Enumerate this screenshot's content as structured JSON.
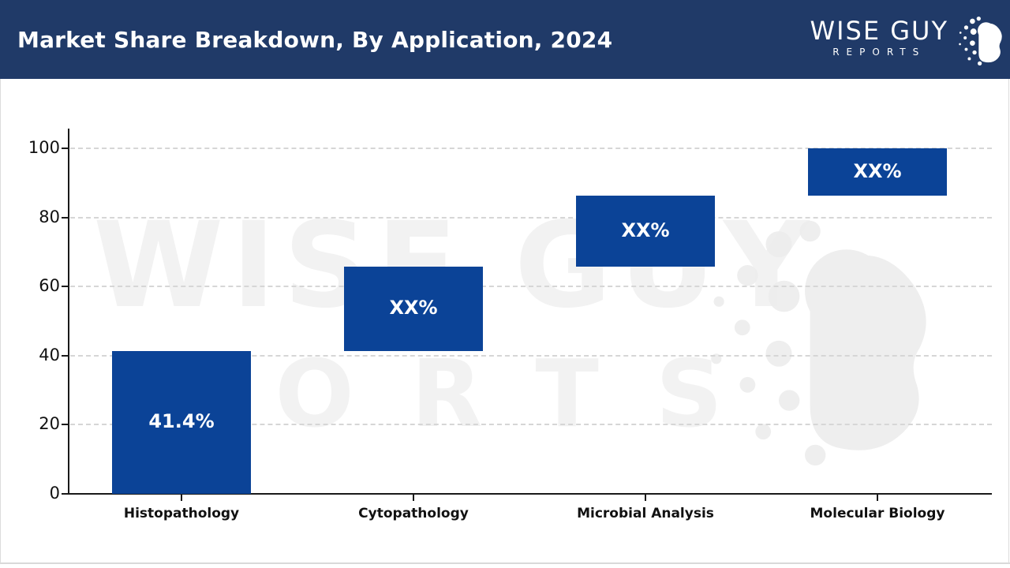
{
  "header": {
    "title": "Market Share Breakdown, By Application, 2024",
    "brand_line1": "WISE GUY",
    "brand_line2": "REPORTS",
    "bg_color": "#203a68"
  },
  "watermark": {
    "line1": "WISE GUY",
    "line2": "PORTS"
  },
  "chart_data": {
    "type": "bar",
    "subtype": "waterfall",
    "title": "Market Share Breakdown, By Application, 2024",
    "categories": [
      "Histopathology",
      "Cytopathology",
      "Microbial Analysis",
      "Molecular Biology"
    ],
    "segments": [
      {
        "category": "Histopathology",
        "start": 0,
        "end": 41.4,
        "label": "41.4%"
      },
      {
        "category": "Cytopathology",
        "start": 41.4,
        "end": 65.7,
        "label": "XX%"
      },
      {
        "category": "Microbial Analysis",
        "start": 65.7,
        "end": 86.4,
        "label": "XX%"
      },
      {
        "category": "Molecular Biology",
        "start": 86.4,
        "end": 100,
        "label": "XX%"
      }
    ],
    "xlabel": "",
    "ylabel": "",
    "ylim": [
      0,
      100
    ],
    "yticks": [
      0,
      20,
      40,
      60,
      80,
      100
    ],
    "grid": "dashed horizontal, light gray, behind bars",
    "legend": "none",
    "bar_color": "#0b4397",
    "bar_label_color": "#ffffff",
    "axis_color": "#1a1a1a"
  }
}
